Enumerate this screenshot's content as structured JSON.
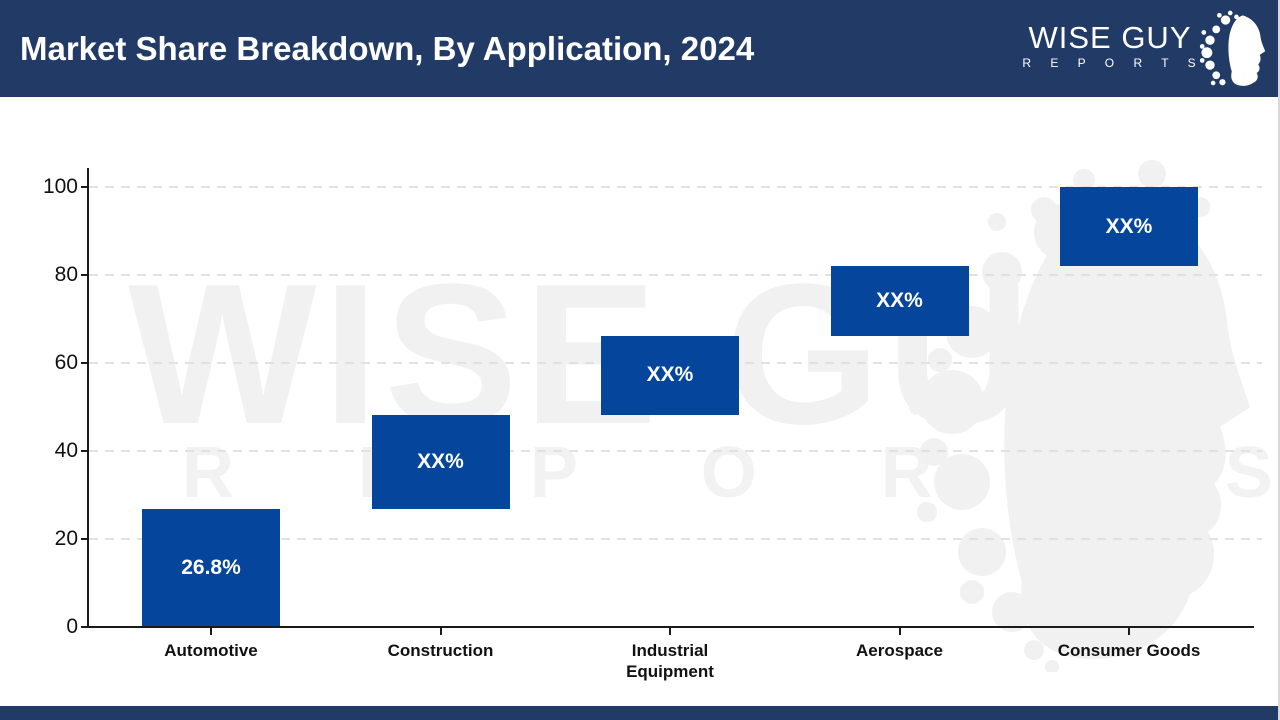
{
  "header": {
    "title": "Market Share Breakdown, By Application, 2024",
    "logo": {
      "line1": "WISE GUY",
      "line2": "R E P O R T S"
    }
  },
  "watermark": {
    "line1": "WISE GUY",
    "line2": "R E P O R T S"
  },
  "footer": {},
  "colors": {
    "header_navy": "#213A66",
    "bar_blue": "#05459C",
    "gridline_gray": "#e2e2e2",
    "watermark_gray": "#f1f1f1"
  },
  "chart_data": {
    "type": "bar",
    "subtype": "waterfall",
    "title": "Market Share Breakdown, By Application, 2024",
    "categories": [
      "Automotive",
      "Construction",
      "Industrial Equipment",
      "Aerospace",
      "Consumer Goods"
    ],
    "series": [
      {
        "name": "Market Share",
        "segment_ranges": [
          [
            0,
            26.8
          ],
          [
            26.8,
            48.2
          ],
          [
            48.2,
            66.2
          ],
          [
            66.2,
            82.0
          ],
          [
            82.0,
            100.0
          ]
        ],
        "increments": [
          26.8,
          21.4,
          18.0,
          15.8,
          18.0
        ]
      }
    ],
    "bar_labels": [
      "26.8%",
      "XX%",
      "XX%",
      "XX%",
      "XX%"
    ],
    "xlabel": "",
    "ylabel": "",
    "ylim": [
      0,
      105
    ],
    "yticks": [
      0,
      20,
      40,
      60,
      80,
      100
    ],
    "grid": "horizontal-dashed",
    "legend": "none",
    "bar_color": "#05459C",
    "label_color": "#ffffff"
  }
}
